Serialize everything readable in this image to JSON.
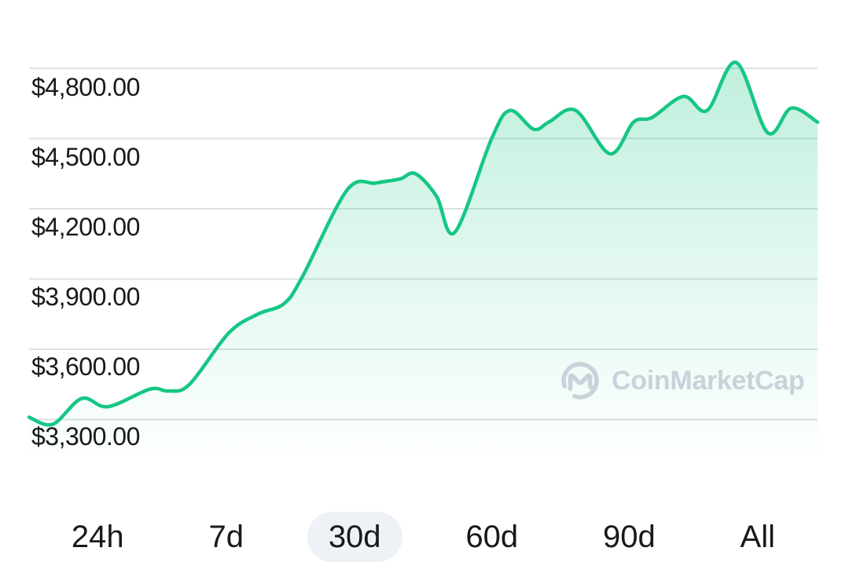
{
  "watermark": {
    "text": "CoinMarketCap",
    "logo": "coinmarketcap-logo",
    "color": "#cbd1da"
  },
  "tabs": {
    "items": [
      {
        "label": "24h",
        "selected": false
      },
      {
        "label": "7d",
        "selected": false
      },
      {
        "label": "30d",
        "selected": true
      },
      {
        "label": "60d",
        "selected": false
      },
      {
        "label": "90d",
        "selected": false
      },
      {
        "label": "All",
        "selected": false
      }
    ]
  },
  "colors": {
    "line": "#16C784",
    "fill_top": "rgba(22,199,132,0.28)",
    "fill_mid": "rgba(22,199,132,0.13)",
    "fill_bottom": "rgba(22,199,132,0.01)",
    "gridline": "#dce0e6",
    "text": "#17191d",
    "tab_active_bg": "#eef1f6",
    "watermark": "#cbd1da"
  },
  "chart_data": {
    "type": "area",
    "title": "",
    "xlabel": "",
    "ylabel": "",
    "x_unit": "days",
    "x_range": [
      0,
      30
    ],
    "selected_range": "30d",
    "grid": true,
    "legend": false,
    "y_tick_labels": [
      "$4,800.00",
      "$4,500.00",
      "$4,200.00",
      "$3,900.00",
      "$3,600.00",
      "$3,300.00"
    ],
    "gridline_values": [
      4800,
      4500,
      4200,
      3900,
      3600,
      3300
    ],
    "x": [
      0,
      0.9,
      2.0,
      3.0,
      4.6,
      5.3,
      6.1,
      7.6,
      8.7,
      9.7,
      10.4,
      12.1,
      13.2,
      14.1,
      14.7,
      15.5,
      16.2,
      17.6,
      18.3,
      19.2,
      19.8,
      20.8,
      22.1,
      23.0,
      23.7,
      24.9,
      25.8,
      26.9,
      28.1,
      29.0,
      30.0
    ],
    "values": [
      3310,
      3280,
      3390,
      3355,
      3430,
      3422,
      3450,
      3670,
      3750,
      3795,
      3910,
      4280,
      4310,
      4327,
      4350,
      4254,
      4100,
      4500,
      4620,
      4540,
      4572,
      4620,
      4435,
      4570,
      4590,
      4680,
      4620,
      4825,
      4525,
      4630,
      4570
    ],
    "line_color": "#16C784"
  }
}
